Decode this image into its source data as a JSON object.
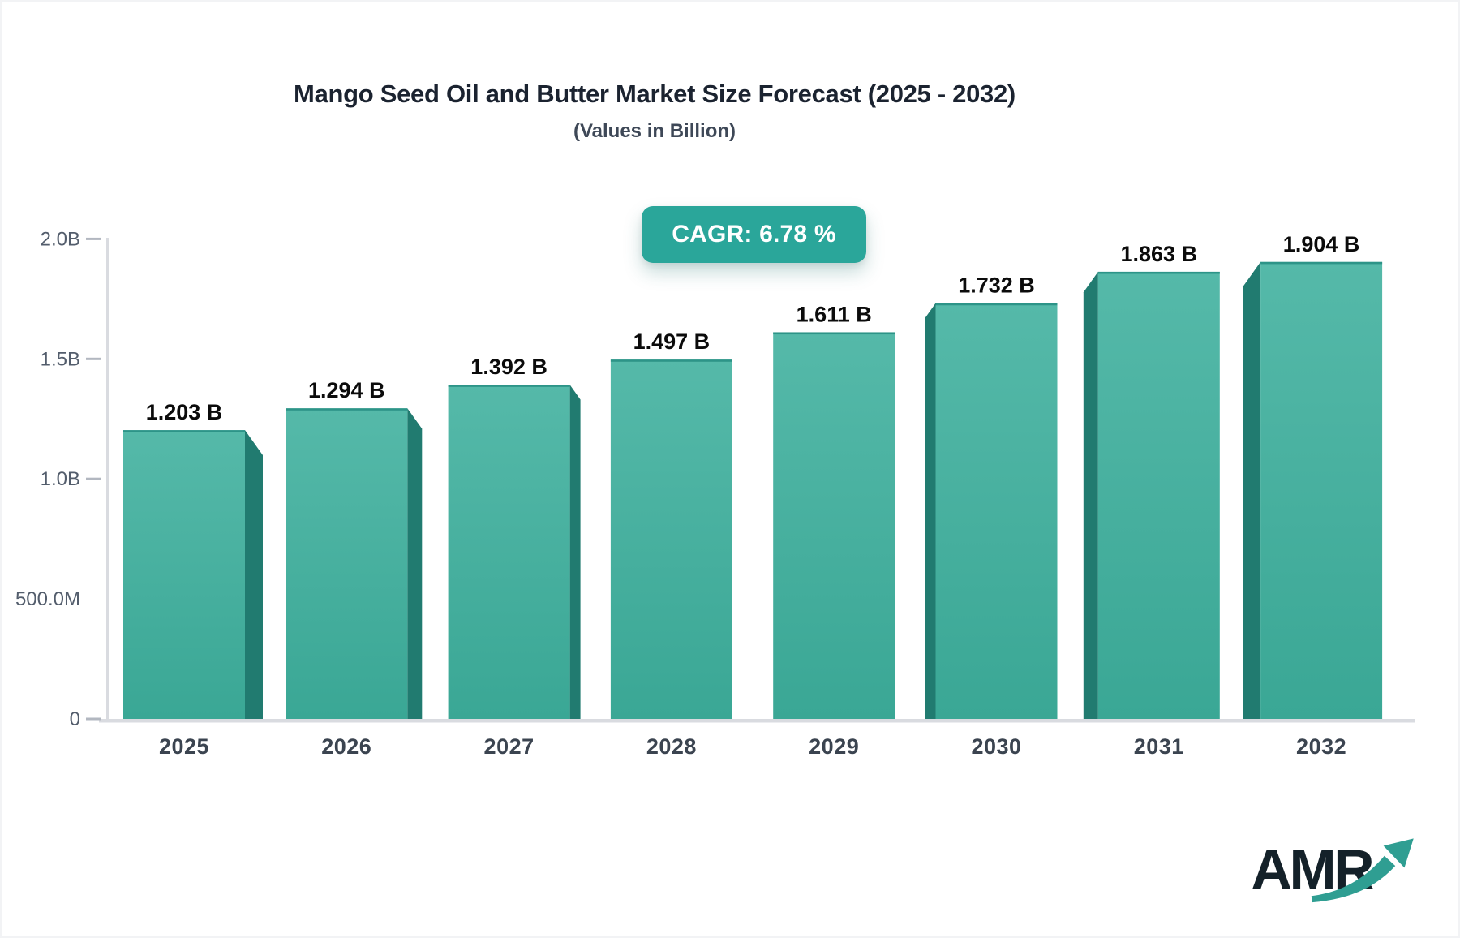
{
  "header": {
    "title": "Mango Seed Oil and Butter Market Size Forecast (2025 - 2032)",
    "subtitle": "(Values in Billion)"
  },
  "badge": {
    "label": "CAGR: 6.78 %"
  },
  "chart_data": {
    "type": "bar",
    "title": "Mango Seed Oil and Butter Market Size Forecast (2025 - 2032)",
    "subtitle": "(Values in Billion)",
    "categories": [
      "2025",
      "2026",
      "2027",
      "2028",
      "2029",
      "2030",
      "2031",
      "2032"
    ],
    "values": [
      1.203,
      1.294,
      1.392,
      1.497,
      1.611,
      1.732,
      1.863,
      1.904
    ],
    "value_labels": [
      "1.203 B",
      "1.294 B",
      "1.392 B",
      "1.497 B",
      "1.611 B",
      "1.732 B",
      "1.863 B",
      "1.904 B"
    ],
    "unit": "B",
    "xlabel": "",
    "ylabel": "",
    "ylim": [
      0,
      2.0
    ],
    "yticks": [
      {
        "label": "0",
        "value": 0,
        "dash": true
      },
      {
        "label": "500.0M",
        "value": 0.5,
        "dash": false
      },
      {
        "label": "1.0B",
        "value": 1.0,
        "dash": true
      },
      {
        "label": "1.5B",
        "value": 1.5,
        "dash": true
      },
      {
        "label": "2.0B",
        "value": 2.0,
        "dash": true
      }
    ],
    "grid": false,
    "legend": null,
    "bar_style_3d": true,
    "cagr": "6.78 %"
  },
  "colors": {
    "bar_front_top": "#55b9a9",
    "bar_front_bottom": "#3aa795",
    "bar_top_edge": "#2d9488",
    "bar_side": "#217b70",
    "badge_bg": "#2aa69a",
    "axis_line": "#d9dbe0",
    "right_frame_line": "#e8eaee",
    "tick_dash": "#b2b7c0",
    "tick_label": "#535d6c",
    "x_label": "#3b4450",
    "value_label": "#0b0b0b",
    "title_color": "#1b2330",
    "logo_text": "#142129",
    "logo_arrow": "#2f9e92"
  },
  "logo": {
    "text": "AMR"
  }
}
